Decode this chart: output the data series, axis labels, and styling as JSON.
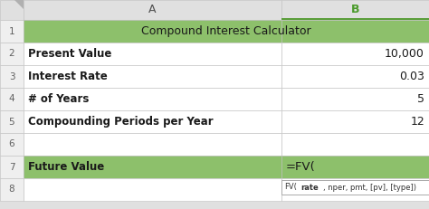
{
  "title": "Compound Interest Calculator",
  "rows": [
    {
      "row": 1,
      "col_a": "Compound Interest Calculator",
      "col_b": "",
      "merged": true,
      "green": true
    },
    {
      "row": 2,
      "col_a": "Present Value",
      "col_b": "10,000",
      "merged": false,
      "green": false
    },
    {
      "row": 3,
      "col_a": "Interest Rate",
      "col_b": "0.03",
      "merged": false,
      "green": false
    },
    {
      "row": 4,
      "col_a": "# of Years",
      "col_b": "5",
      "merged": false,
      "green": false
    },
    {
      "row": 5,
      "col_a": "Compounding Periods per Year",
      "col_b": "12",
      "merged": false,
      "green": false
    },
    {
      "row": 6,
      "col_a": "",
      "col_b": "",
      "merged": false,
      "green": false
    },
    {
      "row": 7,
      "col_a": "Future Value",
      "col_b": "=FV(",
      "merged": false,
      "green": true
    },
    {
      "row": 8,
      "col_a": "",
      "col_b": "",
      "merged": false,
      "green": false
    }
  ],
  "tooltip": "FV(rate, nper, pmt, [pv], [type])",
  "col_header_A": "A",
  "col_header_B": "B",
  "green_fill": "#8DC06B",
  "green_header_b": "#5A9E3A",
  "white_fill": "#FFFFFF",
  "header_bg": "#E0E0E0",
  "row_num_bg": "#EFEFEF",
  "border_color": "#C0C0C0",
  "tooltip_bg": "#FFFFFF",
  "tooltip_border": "#AAAAAA",
  "row_num_text": "#606060",
  "col_header_text": "#505050",
  "body_text_dark": "#1A1A1A",
  "formula_text": "#1A1A1A",
  "tooltip_text": "#333333"
}
